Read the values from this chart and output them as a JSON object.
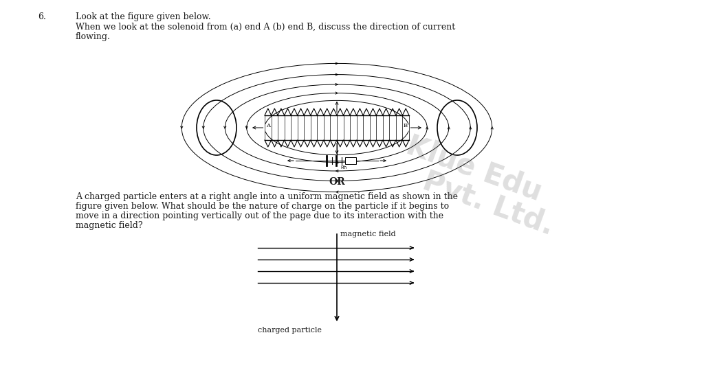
{
  "page_bg": "#ffffff",
  "text_color": "#1a1a1a",
  "title_number": "6.",
  "title_text": "Look at the figure given below.",
  "subtitle_text": "When we look at the solenoid from (a) end A (b) end B, discuss the direction of current\nflowing.",
  "or_text": "OR",
  "second_para": "A charged particle enters at a right angle into a uniform magnetic field as shown in the\nfigure given below. What should be the nature of charge on the particle if it begins to\nmove in a direction pointing vertically out of the page due to its interaction with the\nmagnetic field?",
  "magnetic_field_label": "magnetic field",
  "charged_particle_label": "charged particle",
  "watermark1": "Klue Edu",
  "watermark2": "Pvt. Ltd.",
  "figsize": [
    10.24,
    5.36
  ],
  "dpi": 100
}
